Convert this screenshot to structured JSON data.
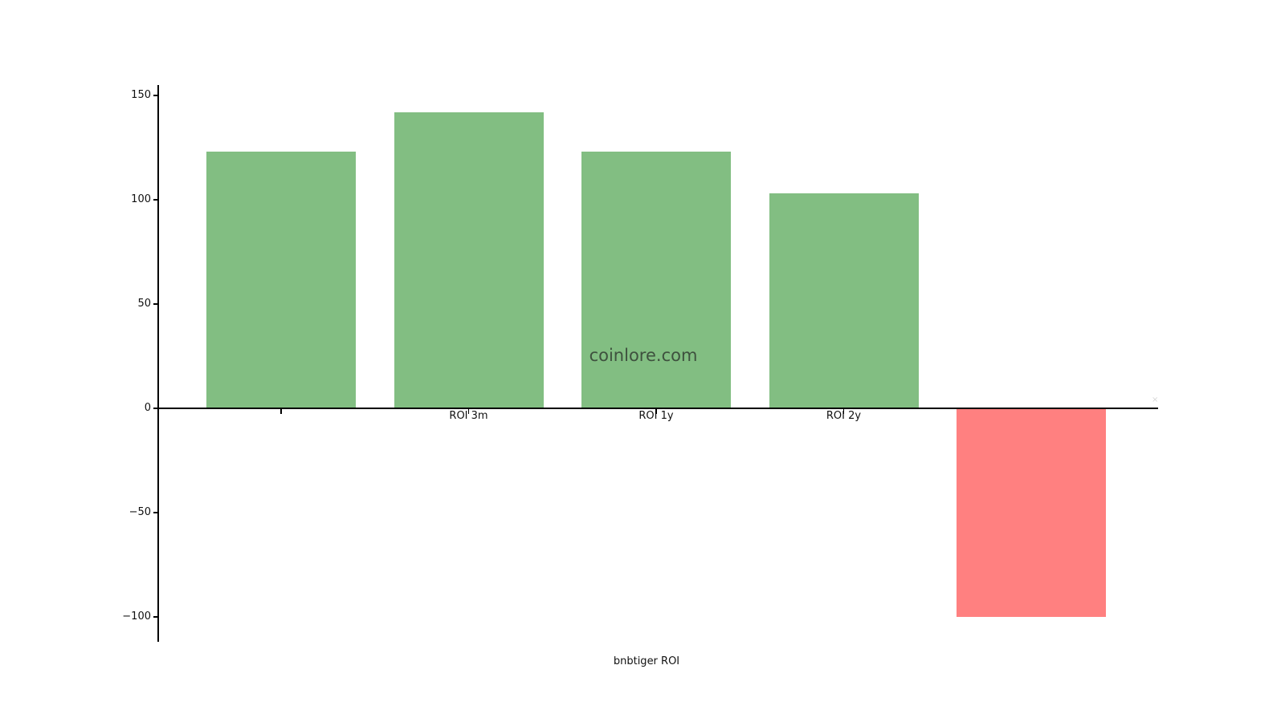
{
  "chart_data": {
    "type": "bar",
    "title": "bnbtiger ROI",
    "watermark": "coinlore.com",
    "categories": [
      "",
      "ROI 3m",
      "ROI 1y",
      "ROI 2y",
      ""
    ],
    "values": [
      123,
      142,
      123,
      103,
      -100
    ],
    "positive_color": "#82be82",
    "negative_color": "#ff8080",
    "yticks": [
      150,
      100,
      50,
      0,
      -50,
      -100
    ],
    "ytick_labels": [
      "150",
      "100",
      "50",
      "0",
      "−50",
      "−100"
    ],
    "ylim": [
      -112.1,
      154.4
    ],
    "xlabel": "",
    "ylabel": "",
    "grid": false,
    "legend": false,
    "axis_color": "#000000",
    "background_color": "#ffffff",
    "axis_end_mark": "×"
  }
}
